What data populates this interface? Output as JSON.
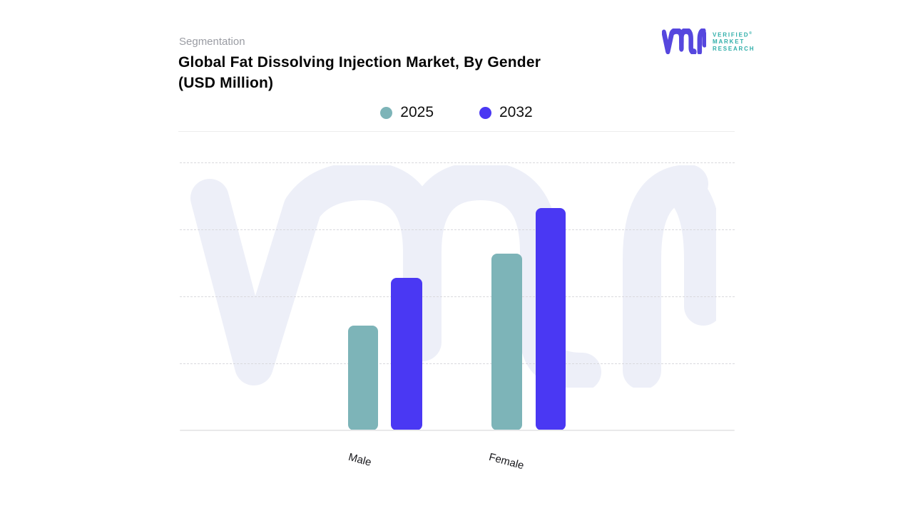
{
  "page": {
    "background": "#ffffff"
  },
  "header": {
    "eyebrow": "Segmentation",
    "title_line1": "Global Fat Dissolving Injection Market, By Gender",
    "title_line2": "(USD Million)"
  },
  "logo": {
    "brand_line1": "VERIFIED",
    "brand_line2": "MARKET",
    "brand_line3": "RESEARCH",
    "registered_mark": "®",
    "mark_color": "#5647DE",
    "text_color": "#2FAEA9"
  },
  "legend": {
    "items": [
      {
        "label": "2025",
        "color": "#7DB4B8"
      },
      {
        "label": "2032",
        "color": "#4A38F3"
      }
    ]
  },
  "chart_data": {
    "type": "bar",
    "title": "Global Fat Dissolving Injection Market, By Gender (USD Million)",
    "categories": [
      "Male",
      "Female"
    ],
    "series": [
      {
        "name": "2025",
        "color": "#7DB4B8",
        "values": [
          39,
          66
        ]
      },
      {
        "name": "2032",
        "color": "#4A38F3",
        "values": [
          57,
          83
        ]
      }
    ],
    "xlabel": "",
    "ylabel": "",
    "ylim": [
      0,
      100
    ],
    "y_axis_labels_visible": false,
    "grid": "horizontal-dashed",
    "legend_position": "top-center",
    "x_tick_rotation_deg": 15,
    "note": "Y-axis has no tick labels in source image; values are estimated as percent of plot height"
  },
  "watermark": {
    "color": "#EDEFF8"
  }
}
